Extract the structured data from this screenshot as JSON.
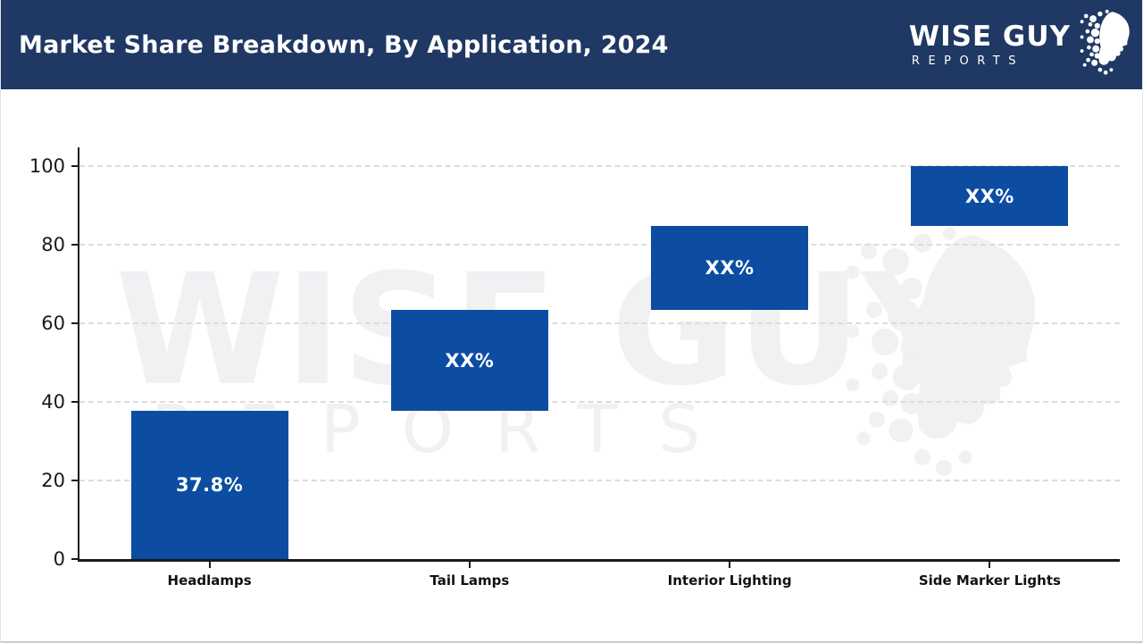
{
  "header": {
    "title": "Market Share Breakdown, By Application, 2024",
    "logo": {
      "line1": "WISE GUY",
      "line2": "REPORTS"
    }
  },
  "watermark": {
    "line1": "WISE GUY",
    "line2": "REPORTS"
  },
  "colors": {
    "header_bg": "#1F3864",
    "bar": "#0C4DA2",
    "bar_label": "#FFFFFF",
    "axis": "#1A1A1A",
    "grid": "#DCDCDC",
    "watermark": "#F1F1F4",
    "title_text": "#FFFFFF"
  },
  "chart_data": {
    "type": "bar",
    "subtype": "waterfall",
    "title": "Market Share Breakdown, By Application, 2024",
    "xlabel": "",
    "ylabel": "",
    "categories": [
      "Headlamps",
      "Tail Lamps",
      "Interior Lighting",
      "Side Marker Lights"
    ],
    "segments": [
      {
        "category": "Headlamps",
        "start": 0,
        "end": 37.8,
        "label": "37.8%"
      },
      {
        "category": "Tail Lamps",
        "start": 37.8,
        "end": 63.3,
        "label": "XX%"
      },
      {
        "category": "Interior Lighting",
        "start": 63.3,
        "end": 84.7,
        "label": "XX%"
      },
      {
        "category": "Side Marker Lights",
        "start": 84.7,
        "end": 100,
        "label": "XX%"
      }
    ],
    "y_ticks": [
      0,
      20,
      40,
      60,
      80,
      100
    ],
    "ylim": [
      0,
      100
    ],
    "grid": "horizontal-dashed",
    "legend": "none"
  }
}
